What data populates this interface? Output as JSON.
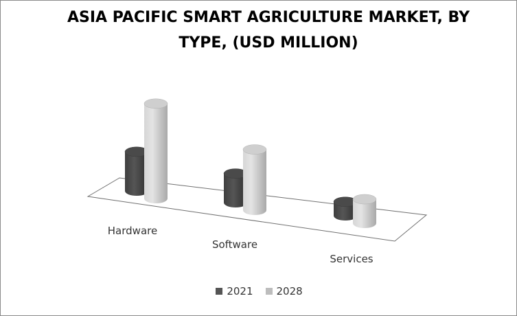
{
  "chart_data": {
    "type": "bar",
    "title": "ASIA PACIFIC SMART AGRICULTURE MARKET, BY TYPE, (USD MILLION)",
    "categories": [
      "Hardware",
      "Software",
      "Services"
    ],
    "series": [
      {
        "name": "2021",
        "values": [
          31,
          23,
          11
        ],
        "color": "#555555"
      },
      {
        "name": "2028",
        "values": [
          75,
          48,
          19
        ],
        "color": "#bdbdbd"
      }
    ],
    "xlabel": "",
    "ylabel": "",
    "ylim": [
      0,
      80
    ],
    "grid": false,
    "legend": "bottom-center",
    "style": "3d-cylinder"
  }
}
